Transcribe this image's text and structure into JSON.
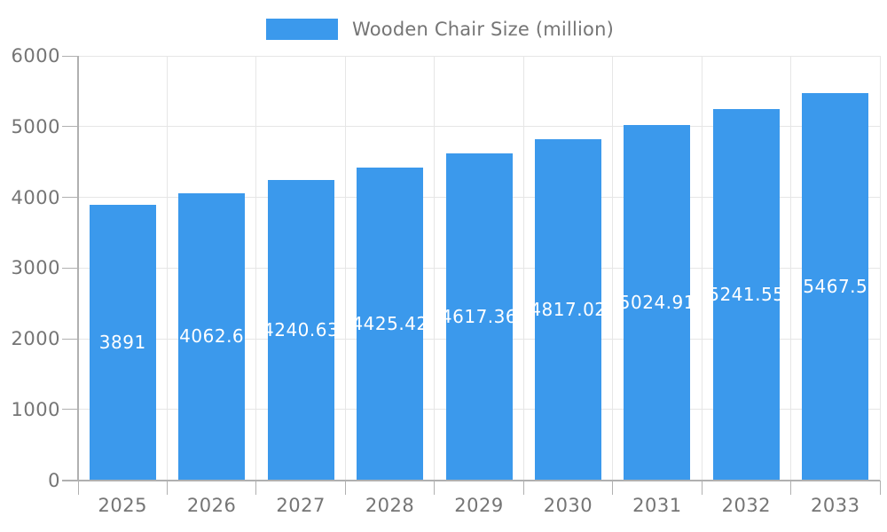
{
  "legend": {
    "label": "Wooden Chair Size (million)"
  },
  "colors": {
    "bar": "#3b99ec",
    "axis_line": "#b0b0b0",
    "gridline": "#e6e6e6",
    "axis_text": "#757575",
    "bar_label_text": "#ffffff",
    "background": "#ffffff"
  },
  "chart_data": {
    "type": "bar",
    "title": "Wooden Chair Size (million)",
    "categories": [
      "2025",
      "2026",
      "2027",
      "2028",
      "2029",
      "2030",
      "2031",
      "2032",
      "2033"
    ],
    "values": [
      3891,
      4062.6,
      4240.63,
      4425.42,
      4617.36,
      4817.02,
      5024.91,
      5241.55,
      5467.5
    ],
    "value_labels": [
      "3891",
      "4062.6",
      "4240.63",
      "4425.42",
      "4617.36",
      "4817.02",
      "5024.91",
      "5241.55",
      "5467.5"
    ],
    "xlabel": "",
    "ylabel": "",
    "ylim": [
      0,
      6000
    ],
    "yticks": [
      0,
      1000,
      2000,
      3000,
      4000,
      5000,
      6000
    ],
    "grid": "both",
    "legend_position": "top",
    "value_label_position": "center-of-bar"
  }
}
